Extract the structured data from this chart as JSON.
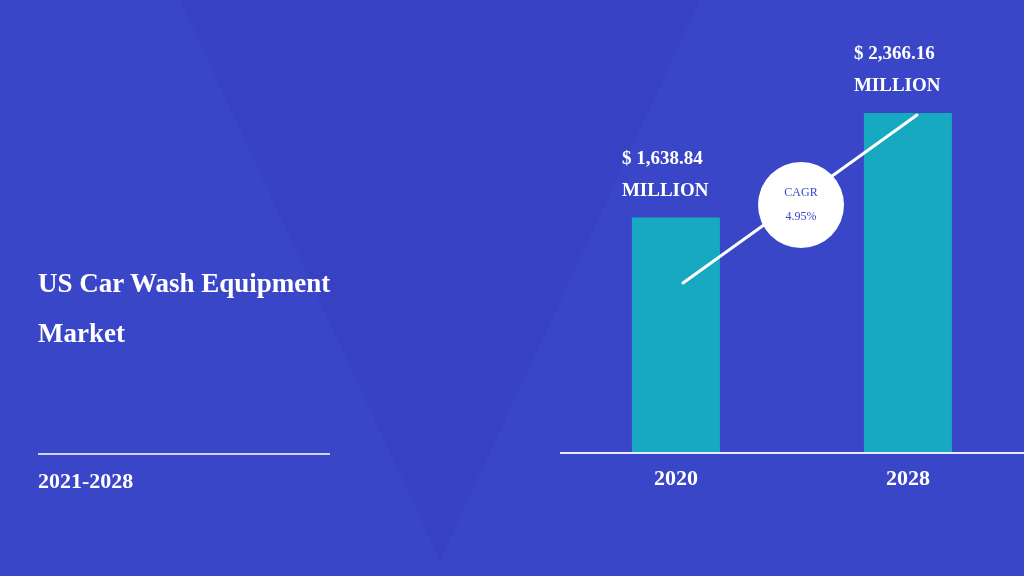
{
  "chart_data": {
    "type": "bar",
    "title": "US Car Wash Equipment Market",
    "subtitle": "2021-2028",
    "categories": [
      "2020",
      "2028"
    ],
    "values": [
      1638.84,
      2366.16
    ],
    "color": "#17a9c1",
    "value_labels": [
      "$ 1,638.84\nMILLION",
      "$ 2,366.16\nMILLION"
    ],
    "annotations": [
      "CAGR\n4.95%"
    ]
  }
}
